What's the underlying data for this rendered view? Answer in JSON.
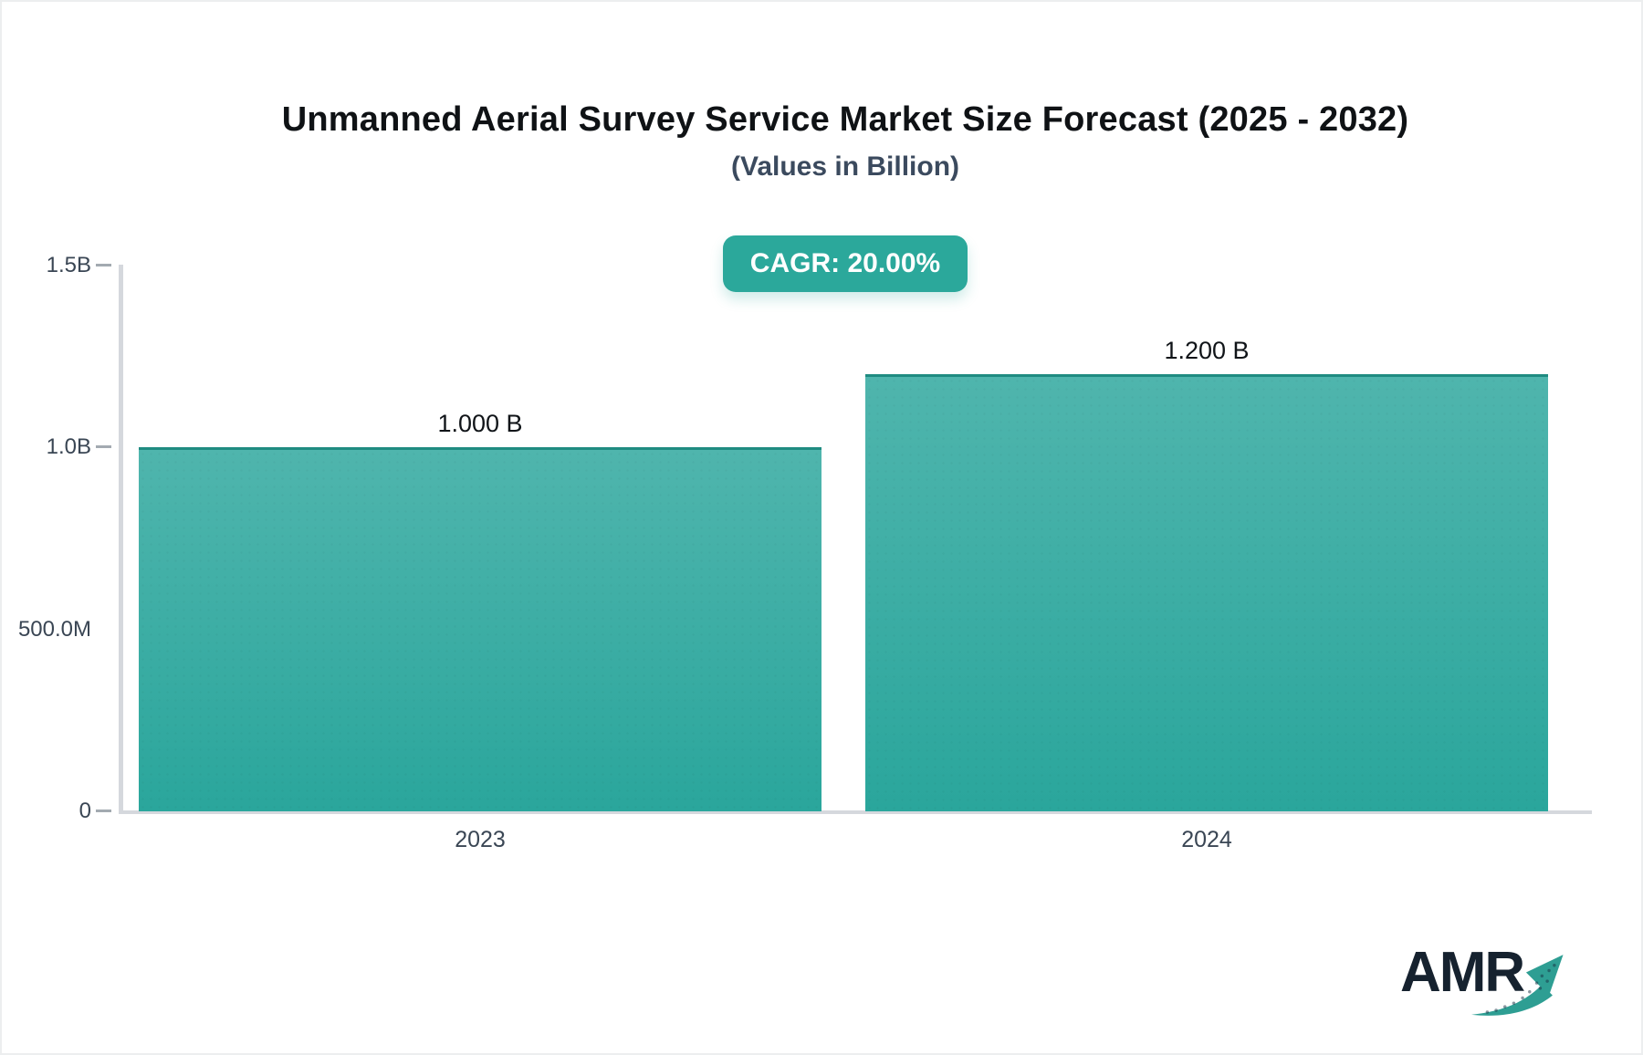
{
  "chart_data": {
    "type": "bar",
    "title": "Unmanned Aerial Survey Service Market Size Forecast (2025 - 2032)",
    "subtitle": "(Values in Billion)",
    "cagr_label": "CAGR: 20.00%",
    "categories": [
      "2023",
      "2024"
    ],
    "values_billion": [
      1.0,
      1.2
    ],
    "bar_labels": [
      "1.000 B",
      "1.200 B"
    ],
    "ylim_billion": [
      0,
      1.5
    ],
    "y_axis_ticks": [
      {
        "label": "1.5B",
        "value_billion": 1.5,
        "tick": true
      },
      {
        "label": "1.0B",
        "value_billion": 1.0,
        "tick": true
      },
      {
        "label": "500.0M",
        "value_billion": 0.5,
        "tick": false
      },
      {
        "label": "0",
        "value_billion": 0.0,
        "tick": true
      }
    ],
    "grid": false,
    "legend": "none"
  },
  "logo": {
    "text": "AMR",
    "icon": "growth-arrow"
  },
  "colors": {
    "bar_top": "#4fb5ad",
    "bar_bottom": "#2aa69c",
    "bar_border_top": "#1f8b81",
    "badge_bg": "#2ba89b",
    "badge_text": "#ffffff",
    "axis_line": "#d5d8dd",
    "tick": "#a3aab1",
    "axis_label": "#3a4654",
    "title_text": "#0f1215",
    "subtitle_text": "#3b4a5e",
    "value_label": "#101418",
    "logo_text": "#16222f",
    "logo_arrow": "#2e9e93",
    "logo_arrow_dots": "#173043"
  }
}
